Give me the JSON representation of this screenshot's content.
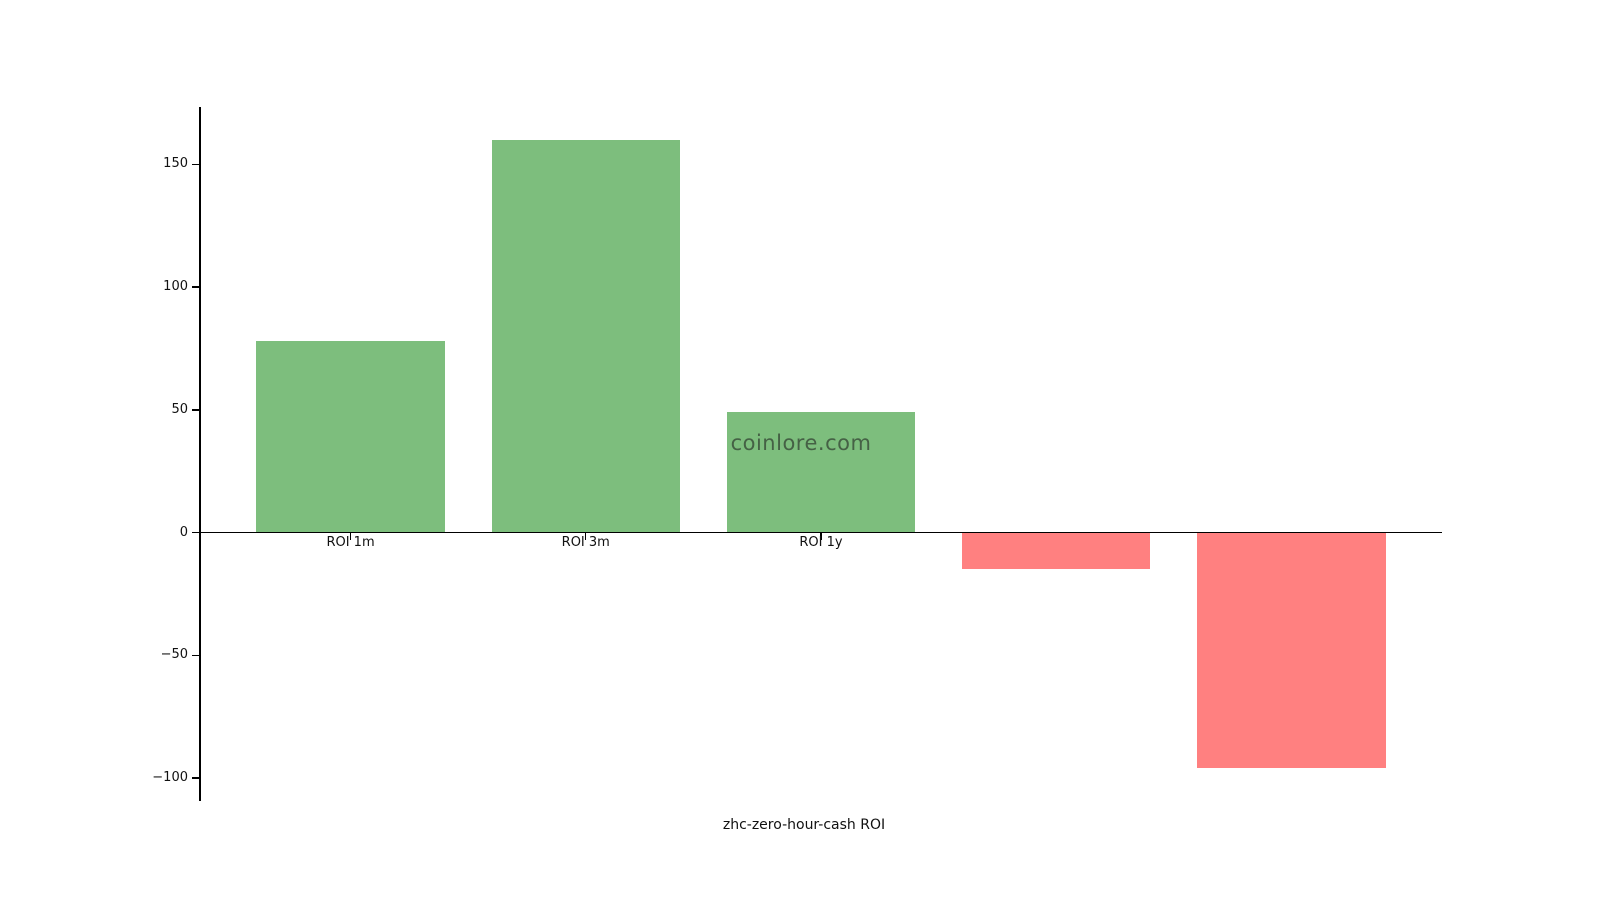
{
  "chart_data": {
    "type": "bar",
    "categories": [
      "ROI 1m",
      "ROI 3m",
      "ROI 1y",
      "",
      ""
    ],
    "values": [
      78,
      160,
      49,
      -15,
      -96
    ],
    "bar_colors": {
      "positive": "#7dbe7d",
      "negative": "#ff8080"
    },
    "xlabel": "zhc-zero-hour-cash ROI",
    "ylabel": "",
    "ytick_values": [
      150,
      100,
      50,
      0,
      -50,
      -100
    ],
    "ytick_labels": [
      "150",
      "100",
      "50",
      "0",
      "−50",
      "−100"
    ],
    "ylim": [
      -109,
      173
    ],
    "grid": false,
    "legend": null,
    "bar_width_ratio": 0.8,
    "watermark": "coinlore.com"
  }
}
